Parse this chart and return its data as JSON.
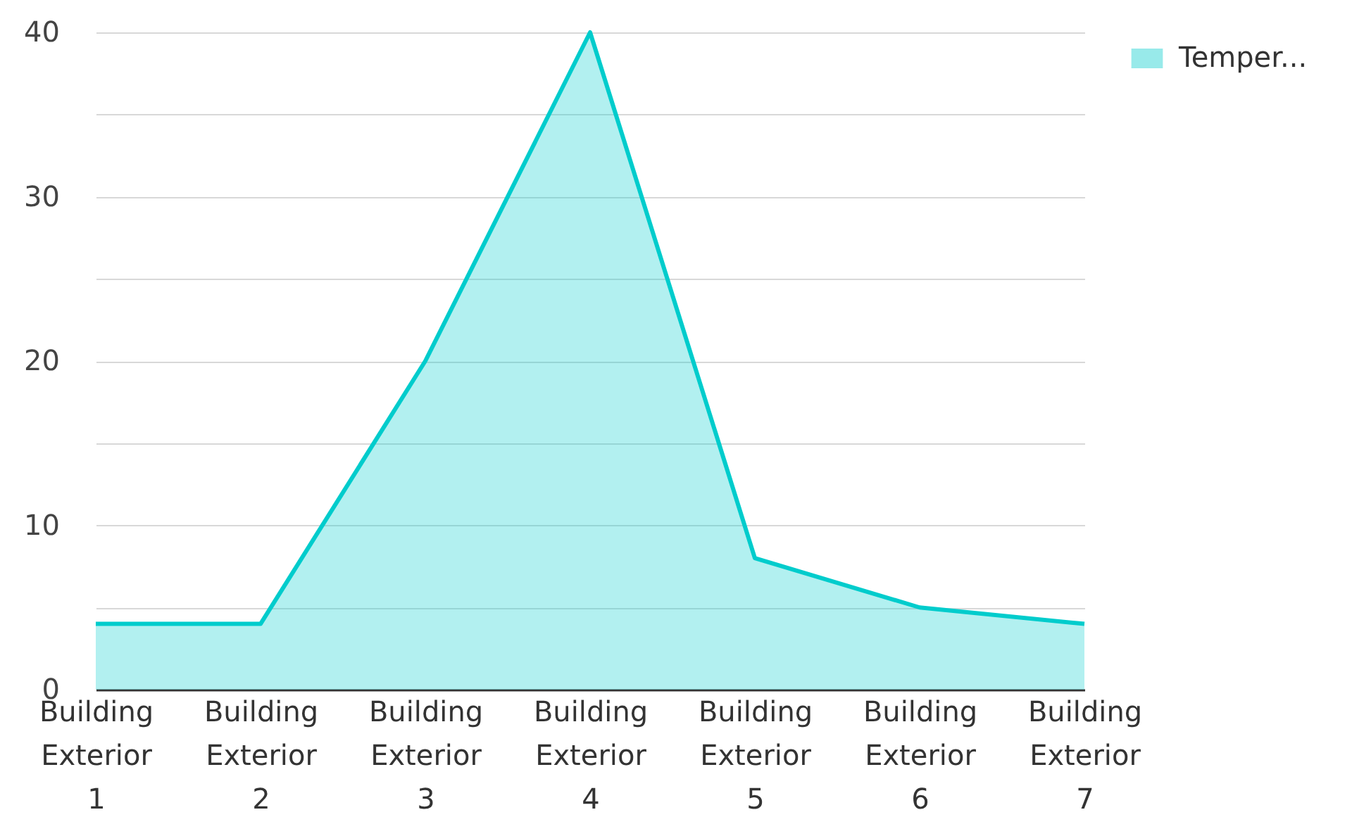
{
  "chart_data": {
    "type": "area",
    "categories": [
      "Building Exterior 1",
      "Building Exterior 2",
      "Building Exterior 3",
      "Building Exterior 4",
      "Building Exterior 5",
      "Building Exterior 6",
      "Building Exterior 7"
    ],
    "series": [
      {
        "name": "Temper...",
        "color": "#00cccc",
        "values": [
          4,
          4,
          20,
          40,
          8,
          5,
          4
        ]
      }
    ],
    "ylim": [
      0,
      40
    ],
    "yticks": [
      0,
      {
        "value": 5,
        "label": null
      },
      10,
      {
        "value": 15,
        "label": null
      },
      20,
      {
        "value": 25,
        "label": null
      },
      30,
      {
        "value": 35,
        "label": null
      },
      40
    ],
    "grid": "y",
    "legend": "top right"
  }
}
